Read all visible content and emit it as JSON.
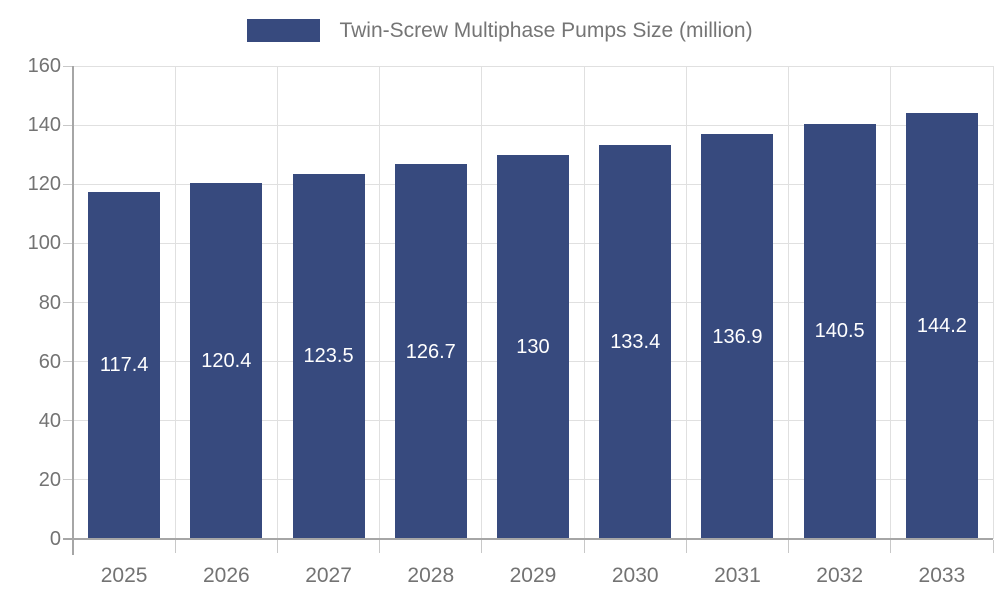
{
  "legend": {
    "label": "Twin-Screw Multiphase Pumps Size (million)",
    "swatch_color": "#374A7E"
  },
  "chart_data": {
    "type": "bar",
    "title": "Twin-Screw Multiphase Pumps Size (million)",
    "categories": [
      "2025",
      "2026",
      "2027",
      "2028",
      "2029",
      "2030",
      "2031",
      "2032",
      "2033"
    ],
    "values": [
      117.4,
      120.4,
      123.5,
      126.7,
      130,
      133.4,
      136.9,
      140.5,
      144.2
    ],
    "xlabel": "",
    "ylabel": "",
    "ylim": [
      0,
      160
    ],
    "yticks": [
      0,
      20,
      40,
      60,
      80,
      100,
      120,
      140,
      160
    ],
    "grid": true,
    "legend_position": "top-center",
    "bar_color": "#374A7E",
    "value_label_color": "#FFFFFF"
  },
  "colors": {
    "background": "#FFFFFF",
    "grid_line": "#E0E0E0",
    "axis_line": "#A6A6A6",
    "tick_mark": "#C8C8C8",
    "tick_label": "#737373",
    "legend_text": "#757575"
  }
}
